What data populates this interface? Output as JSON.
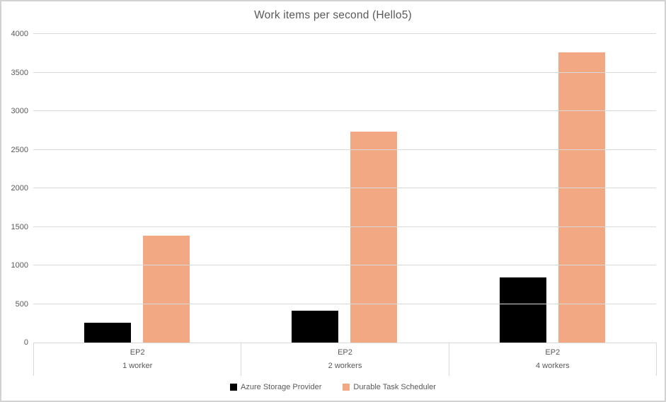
{
  "chart_data": {
    "type": "bar",
    "title": "Work items per second (Hello5)",
    "category_groups": [
      "EP2",
      "EP2",
      "EP2"
    ],
    "categories": [
      "1 worker",
      "2 workers",
      "4 workers"
    ],
    "series": [
      {
        "name": "Azure Storage Provider",
        "color": "#000000",
        "values": [
          260,
          415,
          840
        ]
      },
      {
        "name": "Durable Task Scheduler",
        "color": "#f2a883",
        "values": [
          1390,
          2735,
          3765
        ]
      }
    ],
    "ylim": [
      0,
      4000
    ],
    "ytick_step": 500,
    "yticks": [
      0,
      500,
      1000,
      1500,
      2000,
      2500,
      3000,
      3500,
      4000
    ],
    "grid": true,
    "legend_position": "bottom",
    "styles": {
      "gridline_color": "#d9d9d9",
      "text_color": "#595959",
      "frame_border_color": "#d2d2d2",
      "background_color": "#ffffff"
    }
  }
}
